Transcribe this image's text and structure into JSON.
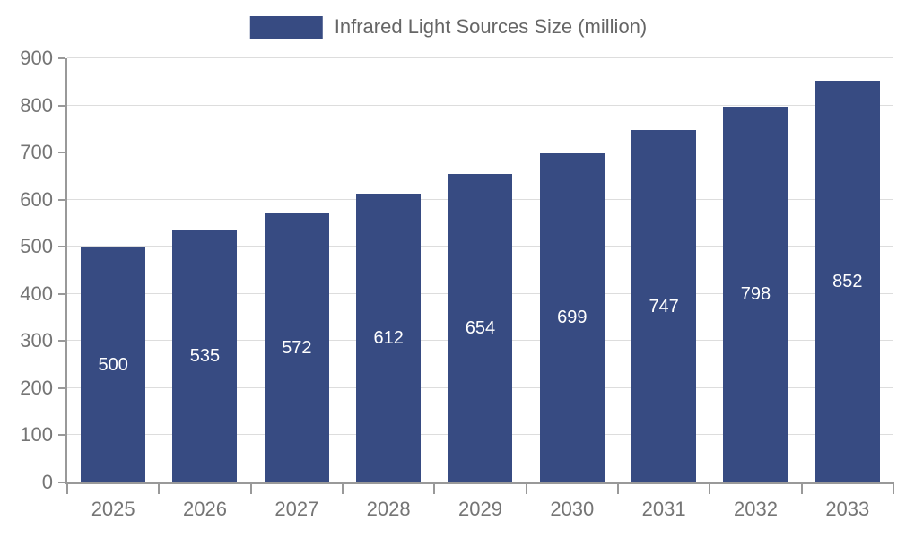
{
  "legend": {
    "label": "Infrared Light Sources Size (million)"
  },
  "chart_data": {
    "type": "bar",
    "categories": [
      "2025",
      "2026",
      "2027",
      "2028",
      "2029",
      "2030",
      "2031",
      "2032",
      "2033"
    ],
    "values": [
      500,
      535,
      572,
      612,
      654,
      699,
      747,
      798,
      852
    ],
    "series": [
      {
        "name": "Infrared Light Sources Size (million)",
        "values": [
          500,
          535,
          572,
          612,
          654,
          699,
          747,
          798,
          852
        ]
      }
    ],
    "title": "",
    "xlabel": "",
    "ylabel": "",
    "ylim": [
      0,
      900
    ],
    "ytick_step": 100,
    "ytick_labels": [
      "0",
      "100",
      "200",
      "300",
      "400",
      "500",
      "600",
      "700",
      "800",
      "900"
    ],
    "grid": true,
    "legend_position": "top-center",
    "value_labels": "inside-center",
    "colors": {
      "bar": "#374B82",
      "legend_text": "#666666",
      "tick_label": "#757575",
      "grid_line": "#DDDDDD",
      "axis_line": "#999999",
      "value_label": "#FFFFFF",
      "background": "#FFFFFF"
    }
  }
}
